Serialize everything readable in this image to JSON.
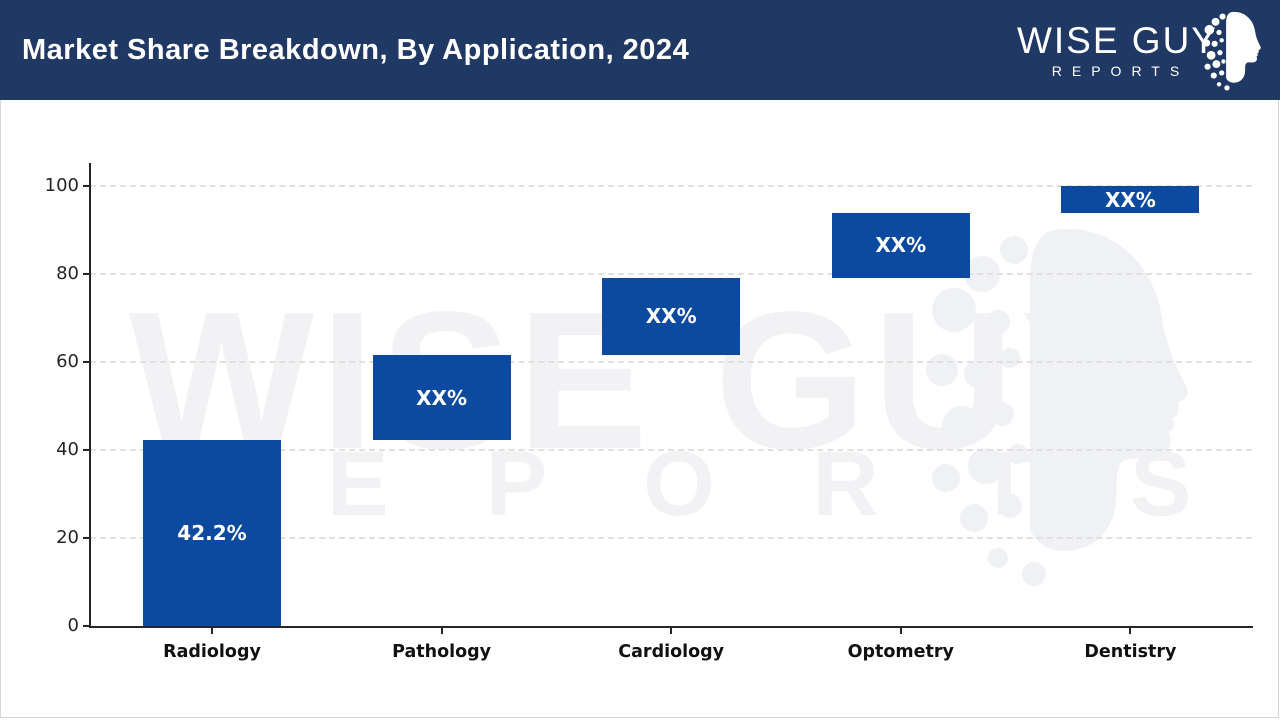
{
  "header": {
    "title": "Market Share Breakdown, By Application, 2024",
    "logo": {
      "line1": "WISE GUY",
      "line2": "REPORTS"
    }
  },
  "watermark": {
    "line1": "WISE GUY",
    "line2": "R E P O R T S"
  },
  "colors": {
    "header_bg": "#203864",
    "header_text": "#ffffff",
    "bar": "#0b4a9e",
    "bar_label": "#ffffff",
    "axis": "#262626",
    "gridline": "#e0e0e0",
    "watermark": "#f2f2f5"
  },
  "chart_data": {
    "type": "bar",
    "subtype": "waterfall",
    "title": "Market Share Breakdown, By Application, 2024",
    "categories": [
      "Radiology",
      "Pathology",
      "Cardiology",
      "Optometry",
      "Dentistry"
    ],
    "segments": [
      {
        "category": "Radiology",
        "start": 0,
        "end": 42.2,
        "value": 42.2,
        "label": "42.2%"
      },
      {
        "category": "Pathology",
        "start": 42.2,
        "end": 61.5,
        "value": 19.3,
        "label": "XX%"
      },
      {
        "category": "Cardiology",
        "start": 61.5,
        "end": 79.2,
        "value": 17.7,
        "label": "XX%"
      },
      {
        "category": "Optometry",
        "start": 79.2,
        "end": 93.8,
        "value": 14.6,
        "label": "XX%"
      },
      {
        "category": "Dentistry",
        "start": 93.8,
        "end": 100,
        "value": 6.2,
        "label": "XX%"
      }
    ],
    "xlabel": "",
    "ylabel": "",
    "ylim": [
      0,
      100
    ],
    "yticks": [
      0,
      20,
      40,
      60,
      80,
      100
    ],
    "grid": "horizontal dashed",
    "legend": "none"
  }
}
